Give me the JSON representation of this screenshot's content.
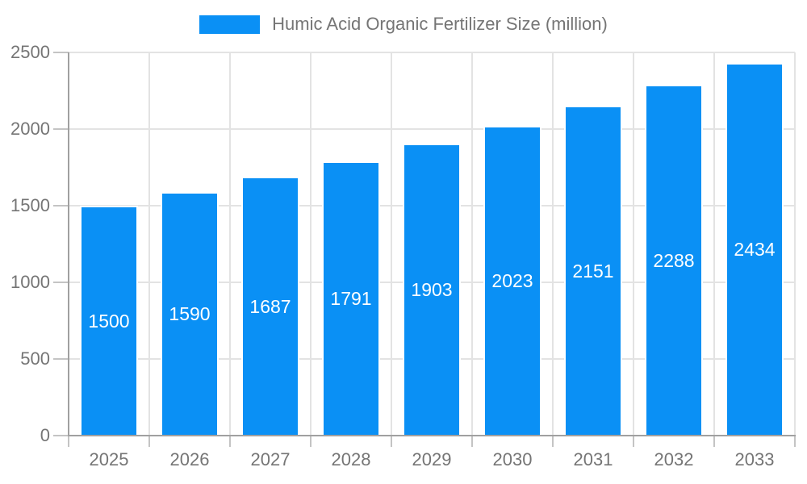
{
  "legend": {
    "label": "Humic Acid Organic Fertilizer Size (million)"
  },
  "chart_data": {
    "type": "bar",
    "title": "Humic Acid Organic Fertilizer Size (million)",
    "categories": [
      "2025",
      "2026",
      "2027",
      "2028",
      "2029",
      "2030",
      "2031",
      "2032",
      "2033"
    ],
    "values": [
      1500,
      1590,
      1687,
      1791,
      1903,
      2023,
      2151,
      2288,
      2434
    ],
    "xlabel": "",
    "ylabel": "",
    "ylim": [
      0,
      2500
    ],
    "yticks": [
      0,
      500,
      1000,
      1500,
      2000,
      2500
    ],
    "grid": true,
    "legend_position": "top-center",
    "bar_color": "#0a90f5",
    "bar_label_color": "#ffffff",
    "axis_color": "#a0a0a0",
    "tick_color": "#c4c4c4",
    "grid_color": "#e3e3e3",
    "text_color": "#757575"
  }
}
